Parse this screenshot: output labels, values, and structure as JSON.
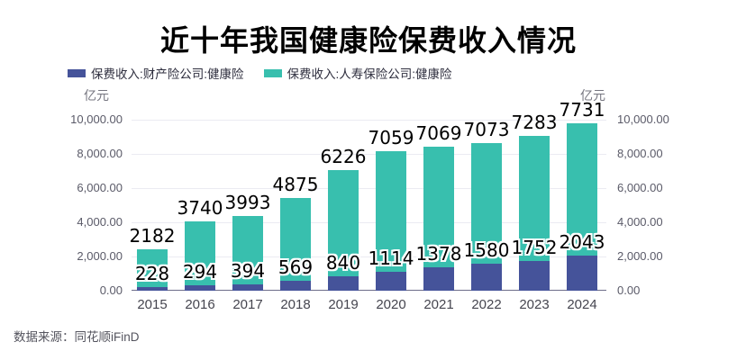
{
  "title": "近十年我国健康险保费收入情况",
  "legend": [
    {
      "label": "保费收入:财产险公司:健康险",
      "color": "#45539a"
    },
    {
      "label": "保费收入:人寿保险公司:健康险",
      "color": "#38bfae"
    }
  ],
  "axis_unit_left": "亿元",
  "axis_unit_right": "亿元",
  "source": "数据来源：同花顺iFinD",
  "chart_data": {
    "type": "bar",
    "stacked": true,
    "title": "近十年我国健康险保费收入情况",
    "categories": [
      "2015",
      "2016",
      "2017",
      "2018",
      "2019",
      "2020",
      "2021",
      "2022",
      "2023",
      "2024"
    ],
    "series": [
      {
        "name": "保费收入:财产险公司:健康险",
        "color": "#45539a",
        "values": [
          228,
          294,
          394,
          569,
          840,
          1114,
          1378,
          1580,
          1752,
          2043
        ]
      },
      {
        "name": "保费收入:人寿保险公司:健康险",
        "color": "#38bfae",
        "values": [
          2182,
          3740,
          3993,
          4875,
          6226,
          7059,
          7069,
          7073,
          7283,
          7731
        ]
      }
    ],
    "ylabel": "亿元",
    "ylim": [
      0,
      10000
    ],
    "ytick_step": 2000,
    "ytick_labels": [
      "0.00",
      "2,000.00",
      "4,000.00",
      "6,000.00",
      "8,000.00",
      "10,000.00"
    ],
    "grid": true,
    "legend_position": "top-left",
    "value_labels": "per-series"
  }
}
